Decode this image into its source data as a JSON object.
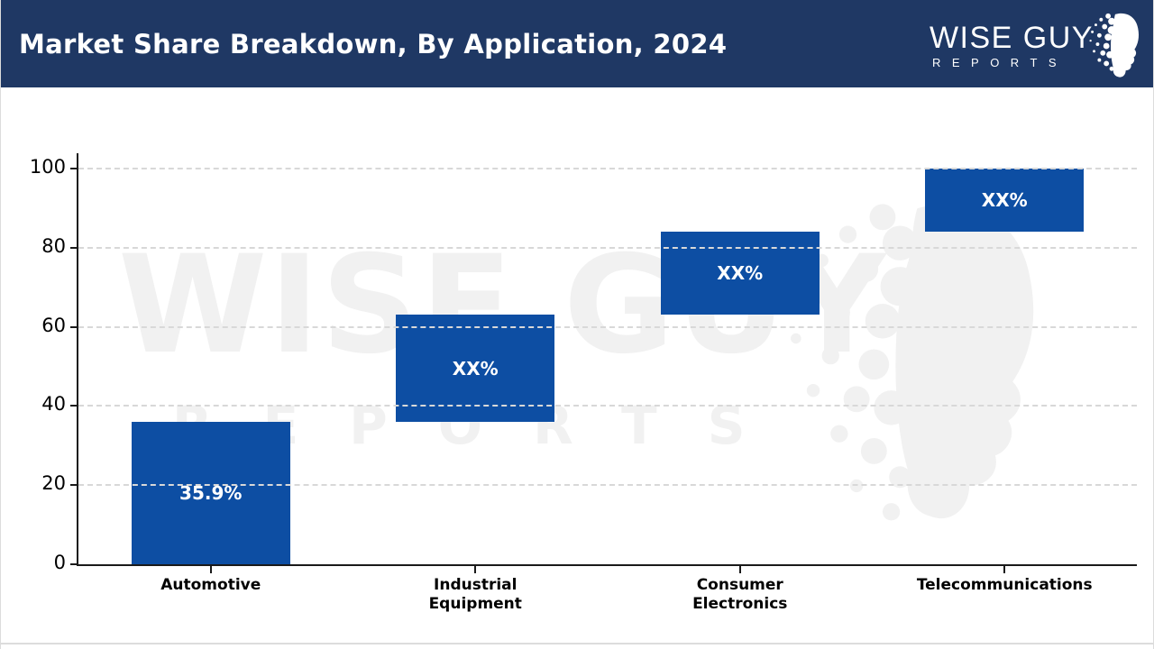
{
  "header": {
    "title": "Market Share Breakdown, By Application, 2024",
    "brand": {
      "name_line1": "WISE GUY",
      "name_line2": "REPORTS"
    }
  },
  "watermark": {
    "line1": "WISE GUY",
    "line2": "REPORTS"
  },
  "chart_data": {
    "type": "bar",
    "variant": "waterfall",
    "title": "Market Share Breakdown, By Application, 2024",
    "xlabel": "",
    "ylabel": "",
    "ylim": [
      0,
      105
    ],
    "yticks": [
      0,
      20,
      40,
      60,
      80,
      100
    ],
    "grid": {
      "horizontal": true,
      "style": "dashed",
      "drawn_above_bars": true
    },
    "bar_color": "#0d4ea3",
    "value_label_color": "#ffffff",
    "categories": [
      "Automotive",
      "Industrial Equipment",
      "Consumer Electronics",
      "Telecommunications"
    ],
    "segments": [
      {
        "category_lines": [
          "Automotive"
        ],
        "start": 0,
        "end": 35.9,
        "value_label": "35.9%"
      },
      {
        "category_lines": [
          "Industrial",
          "Equipment"
        ],
        "start": 35.9,
        "end": 63,
        "value_label": "XX%"
      },
      {
        "category_lines": [
          "Consumer",
          "Electronics"
        ],
        "start": 63,
        "end": 84,
        "value_label": "XX%"
      },
      {
        "category_lines": [
          "Telecommunications"
        ],
        "start": 84,
        "end": 100,
        "value_label": "XX%"
      }
    ]
  },
  "colors": {
    "header_bg": "#1f3864",
    "bar": "#0d4ea3",
    "axis": "#1a1a1a",
    "grid": "#d8d8d8",
    "tick_text": "#000000",
    "watermark": "#f1f1f1",
    "title_text": "#ffffff"
  }
}
